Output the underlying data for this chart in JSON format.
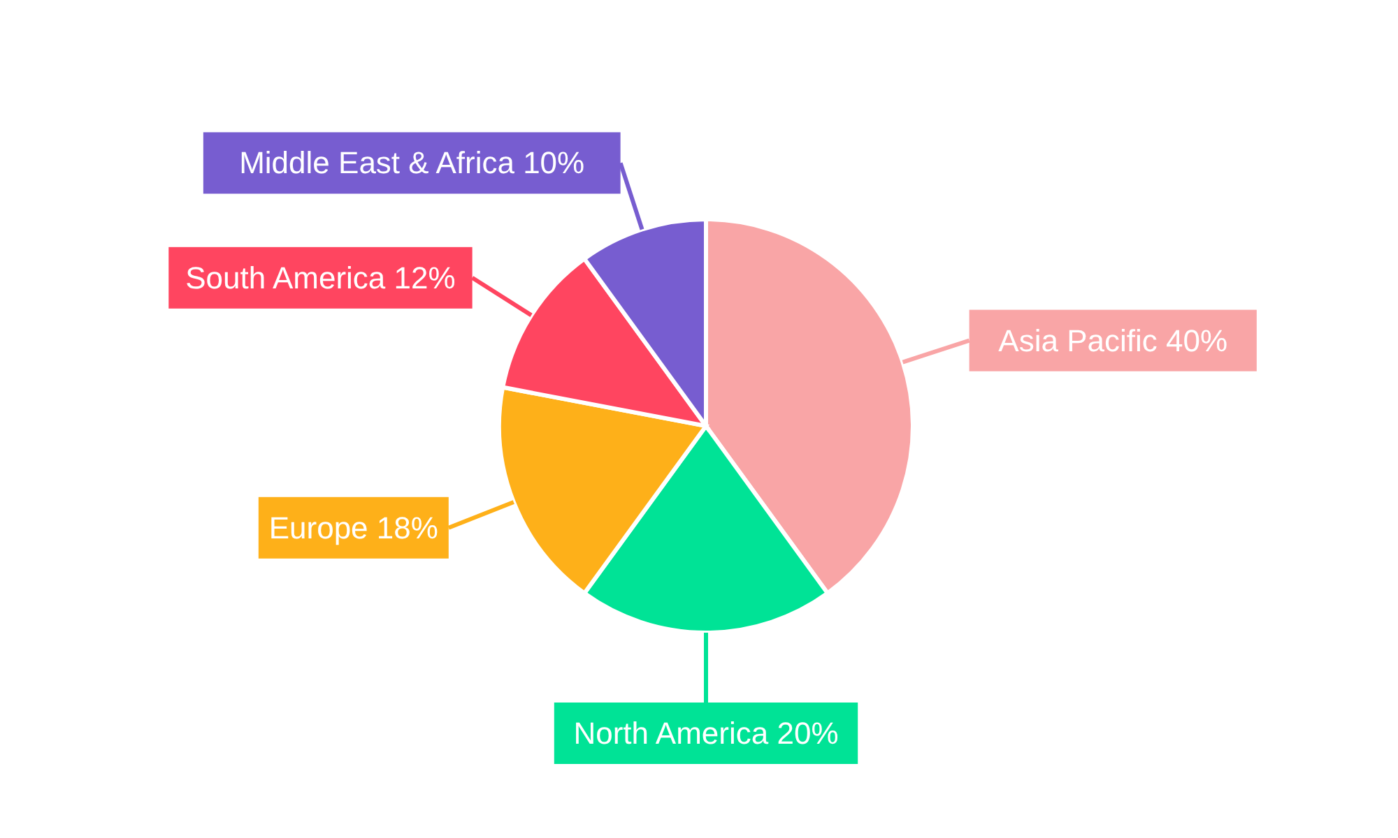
{
  "chart_data": {
    "type": "pie",
    "categories": [
      "Asia Pacific",
      "North America",
      "Europe",
      "South America",
      "Middle East & Africa"
    ],
    "values": [
      40,
      20,
      18,
      12,
      10
    ],
    "value_labels": [
      "40%",
      "20%",
      "18%",
      "12%",
      "10%"
    ],
    "colors": [
      "#f9a5a6",
      "#00e396",
      "#feb019",
      "#ff4560",
      "#775dd0"
    ]
  }
}
